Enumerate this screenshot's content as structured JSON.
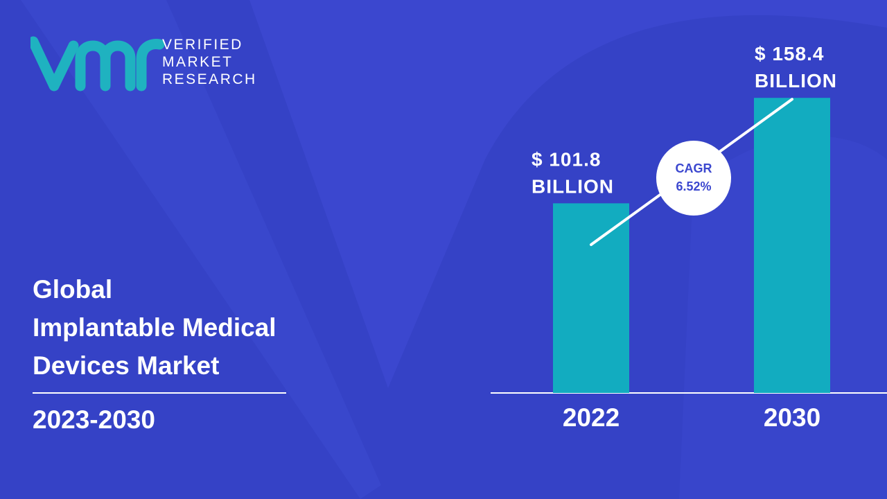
{
  "brand": {
    "line1": "VERIFIED",
    "line2": "MARKET",
    "line3": "RESEARCH",
    "accent_color": "#1fb2c0"
  },
  "title": {
    "line1": "Global",
    "line2": "Implantable Medical",
    "line3": "Devices Market"
  },
  "period": "2023-2030",
  "cagr": {
    "label": "CAGR",
    "value": "6.52%"
  },
  "colors": {
    "background": "#3b47cf",
    "bar": "#12acc0",
    "text": "#ffffff"
  },
  "chart_data": {
    "type": "bar",
    "categories": [
      "2022",
      "2030"
    ],
    "values": [
      101.8,
      158.4
    ],
    "value_labels": [
      [
        "$ 101.8",
        "BILLION"
      ],
      [
        "$ 158.4",
        "BILLION"
      ]
    ],
    "unit": "BILLION",
    "title": "",
    "xlabel": "",
    "ylabel": ""
  }
}
